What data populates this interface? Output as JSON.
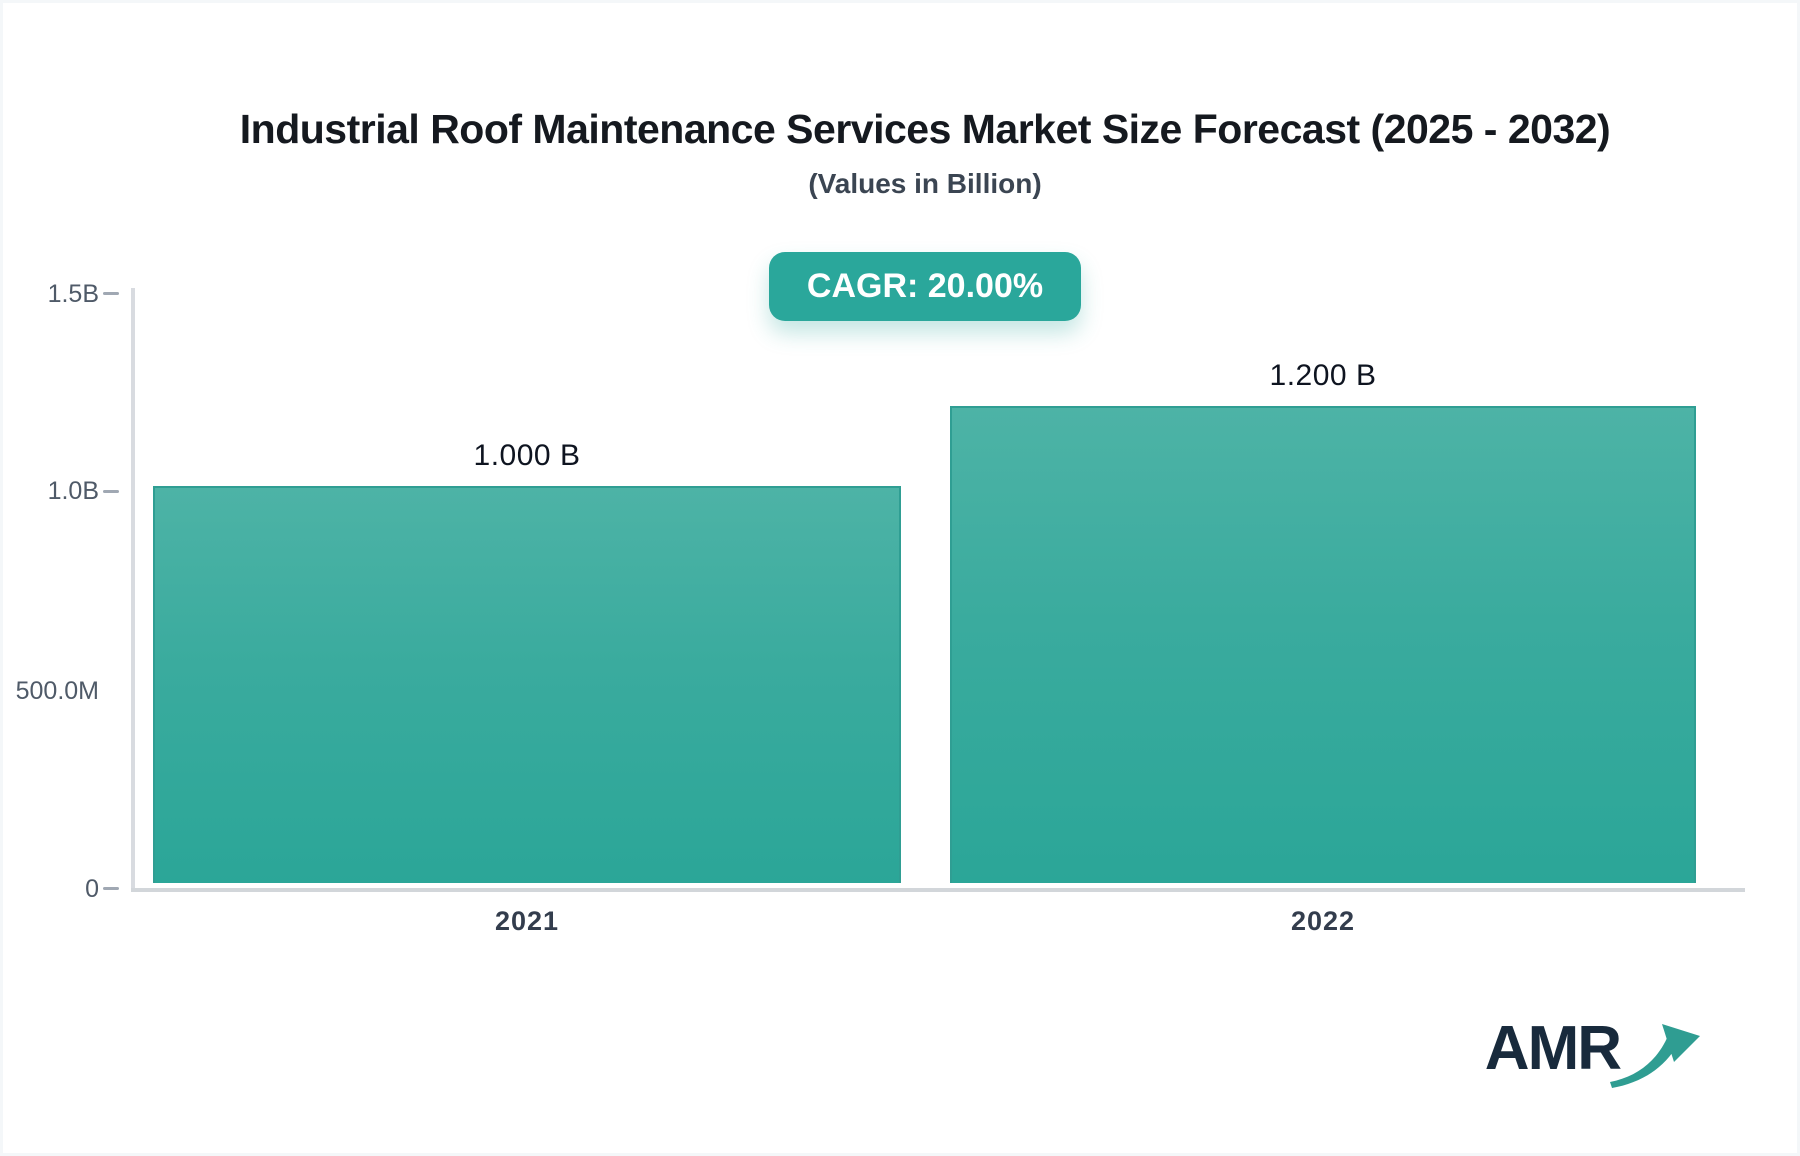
{
  "header": {
    "title": "Industrial Roof Maintenance Services Market Size Forecast (2025 - 2032)",
    "subtitle": "(Values in Billion)",
    "cagr_label": "CAGR: 20.00%"
  },
  "chart_data": {
    "type": "bar",
    "title": "Industrial Roof Maintenance Services Market Size Forecast (2025 - 2032)",
    "subtitle": "(Values in Billion)",
    "unit": "billion",
    "categories": [
      "2021",
      "2022"
    ],
    "values": [
      1.0,
      1.2
    ],
    "value_labels": [
      "1.000 B",
      "1.200 B"
    ],
    "cagr_percent": 20.0,
    "ylim": [
      0,
      1.5
    ],
    "y_ticks": [
      {
        "label": "1.5B",
        "value": 1.5,
        "dash": true
      },
      {
        "label": "1.0B",
        "value": 1.0,
        "dash": true
      },
      {
        "label": "500.0M",
        "value": 0.5,
        "dash": false
      },
      {
        "label": "0",
        "value": 0.0,
        "dash": true
      }
    ],
    "grid": false,
    "legend": false
  },
  "colors": {
    "accent_teal": "#2aa79b",
    "bar_gradient_top": "#4db3a6",
    "bar_gradient_bottom": "#2ba698",
    "bar_border": "#2f9e93",
    "axis_line": "#d8dbe0",
    "baseline": "#d2d6da",
    "tick_dash": "#a0a8b3",
    "tick_label": "#4f5a68",
    "x_label": "#333d4d",
    "value_label": "#0e1420",
    "title": "#15191f",
    "subtitle": "#3b4552",
    "logo_navy": "#182a3c",
    "logo_teal": "#2f9d92"
  },
  "branding": {
    "logo_text": "AMR",
    "arrow_icon": "trend-up-arrow"
  }
}
